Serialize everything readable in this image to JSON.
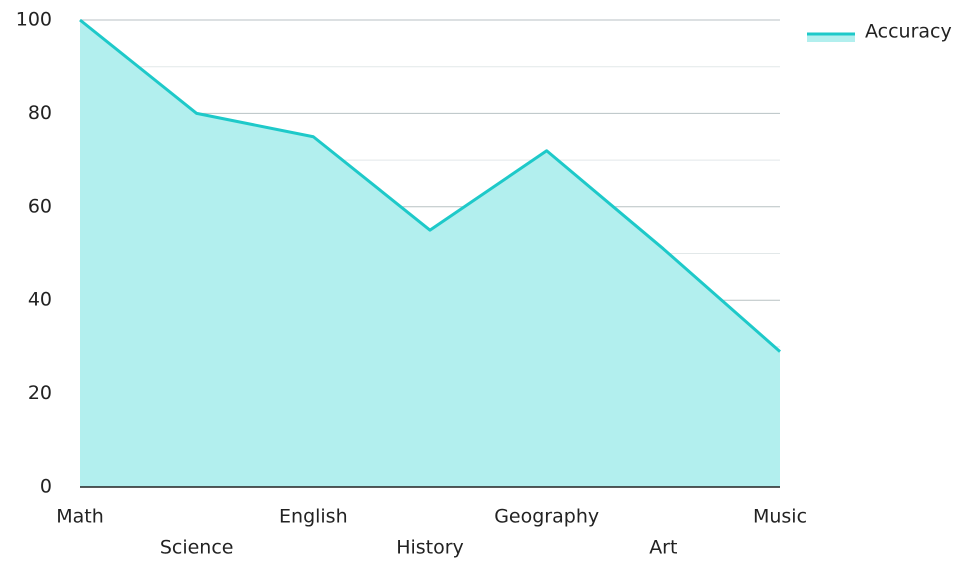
{
  "chart_data": {
    "type": "area",
    "categories": [
      "Math",
      "Science",
      "English",
      "History",
      "Geography",
      "Art",
      "Music"
    ],
    "series": [
      {
        "name": "Accuracy",
        "color": "#1ec9c9",
        "fill": "#b2efee",
        "values": [
          100,
          80,
          75,
          55,
          72,
          51,
          29
        ]
      }
    ],
    "ylim": [
      0,
      100
    ],
    "yticks": [
      0,
      20,
      40,
      60,
      80,
      100
    ],
    "grid": true,
    "legend": "top-right"
  }
}
